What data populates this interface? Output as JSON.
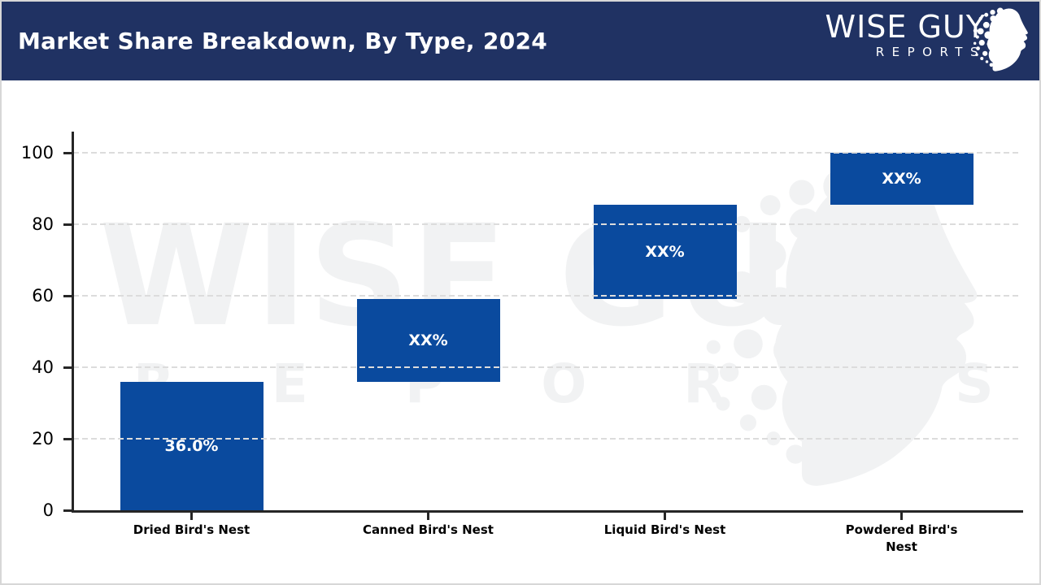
{
  "header": {
    "title": "Market Share Breakdown, By Type, 2024",
    "logo": {
      "line1": "WISE GUY",
      "line2": "REPORTS"
    }
  },
  "watermark": {
    "line1": "WISE GUY",
    "line2": "REPORTS"
  },
  "colors": {
    "header_bg": "#203263",
    "bar": "#0a4a9e",
    "bar_label": "#ffffff",
    "watermark": "#f1f2f3",
    "grid": "#dcdcdc",
    "axis": "#262626"
  },
  "chart_data": {
    "type": "bar",
    "subtype": "waterfall",
    "title": "Market Share Breakdown, By Type, 2024",
    "categories": [
      "Dried Bird's Nest",
      "Canned Bird's Nest",
      "Liquid Bird's Nest",
      "Powdered Bird's Nest"
    ],
    "segments": [
      {
        "category": "Dried Bird's Nest",
        "start": 0,
        "end": 36,
        "label": "36.0%"
      },
      {
        "category": "Canned Bird's Nest",
        "start": 36,
        "end": 59,
        "label": "XX%"
      },
      {
        "category": "Liquid Bird's Nest",
        "start": 59,
        "end": 85.5,
        "label": "XX%"
      },
      {
        "category": "Powdered Bird's Nest",
        "start": 85.5,
        "end": 100,
        "label": "XX%"
      }
    ],
    "xlabel": "",
    "ylabel": "",
    "yticks": [
      0,
      20,
      40,
      60,
      80,
      100
    ],
    "ylim": [
      0,
      105
    ],
    "grid": "horizontal-dashed",
    "legend": "none",
    "bar_value_labels_position": "center"
  }
}
